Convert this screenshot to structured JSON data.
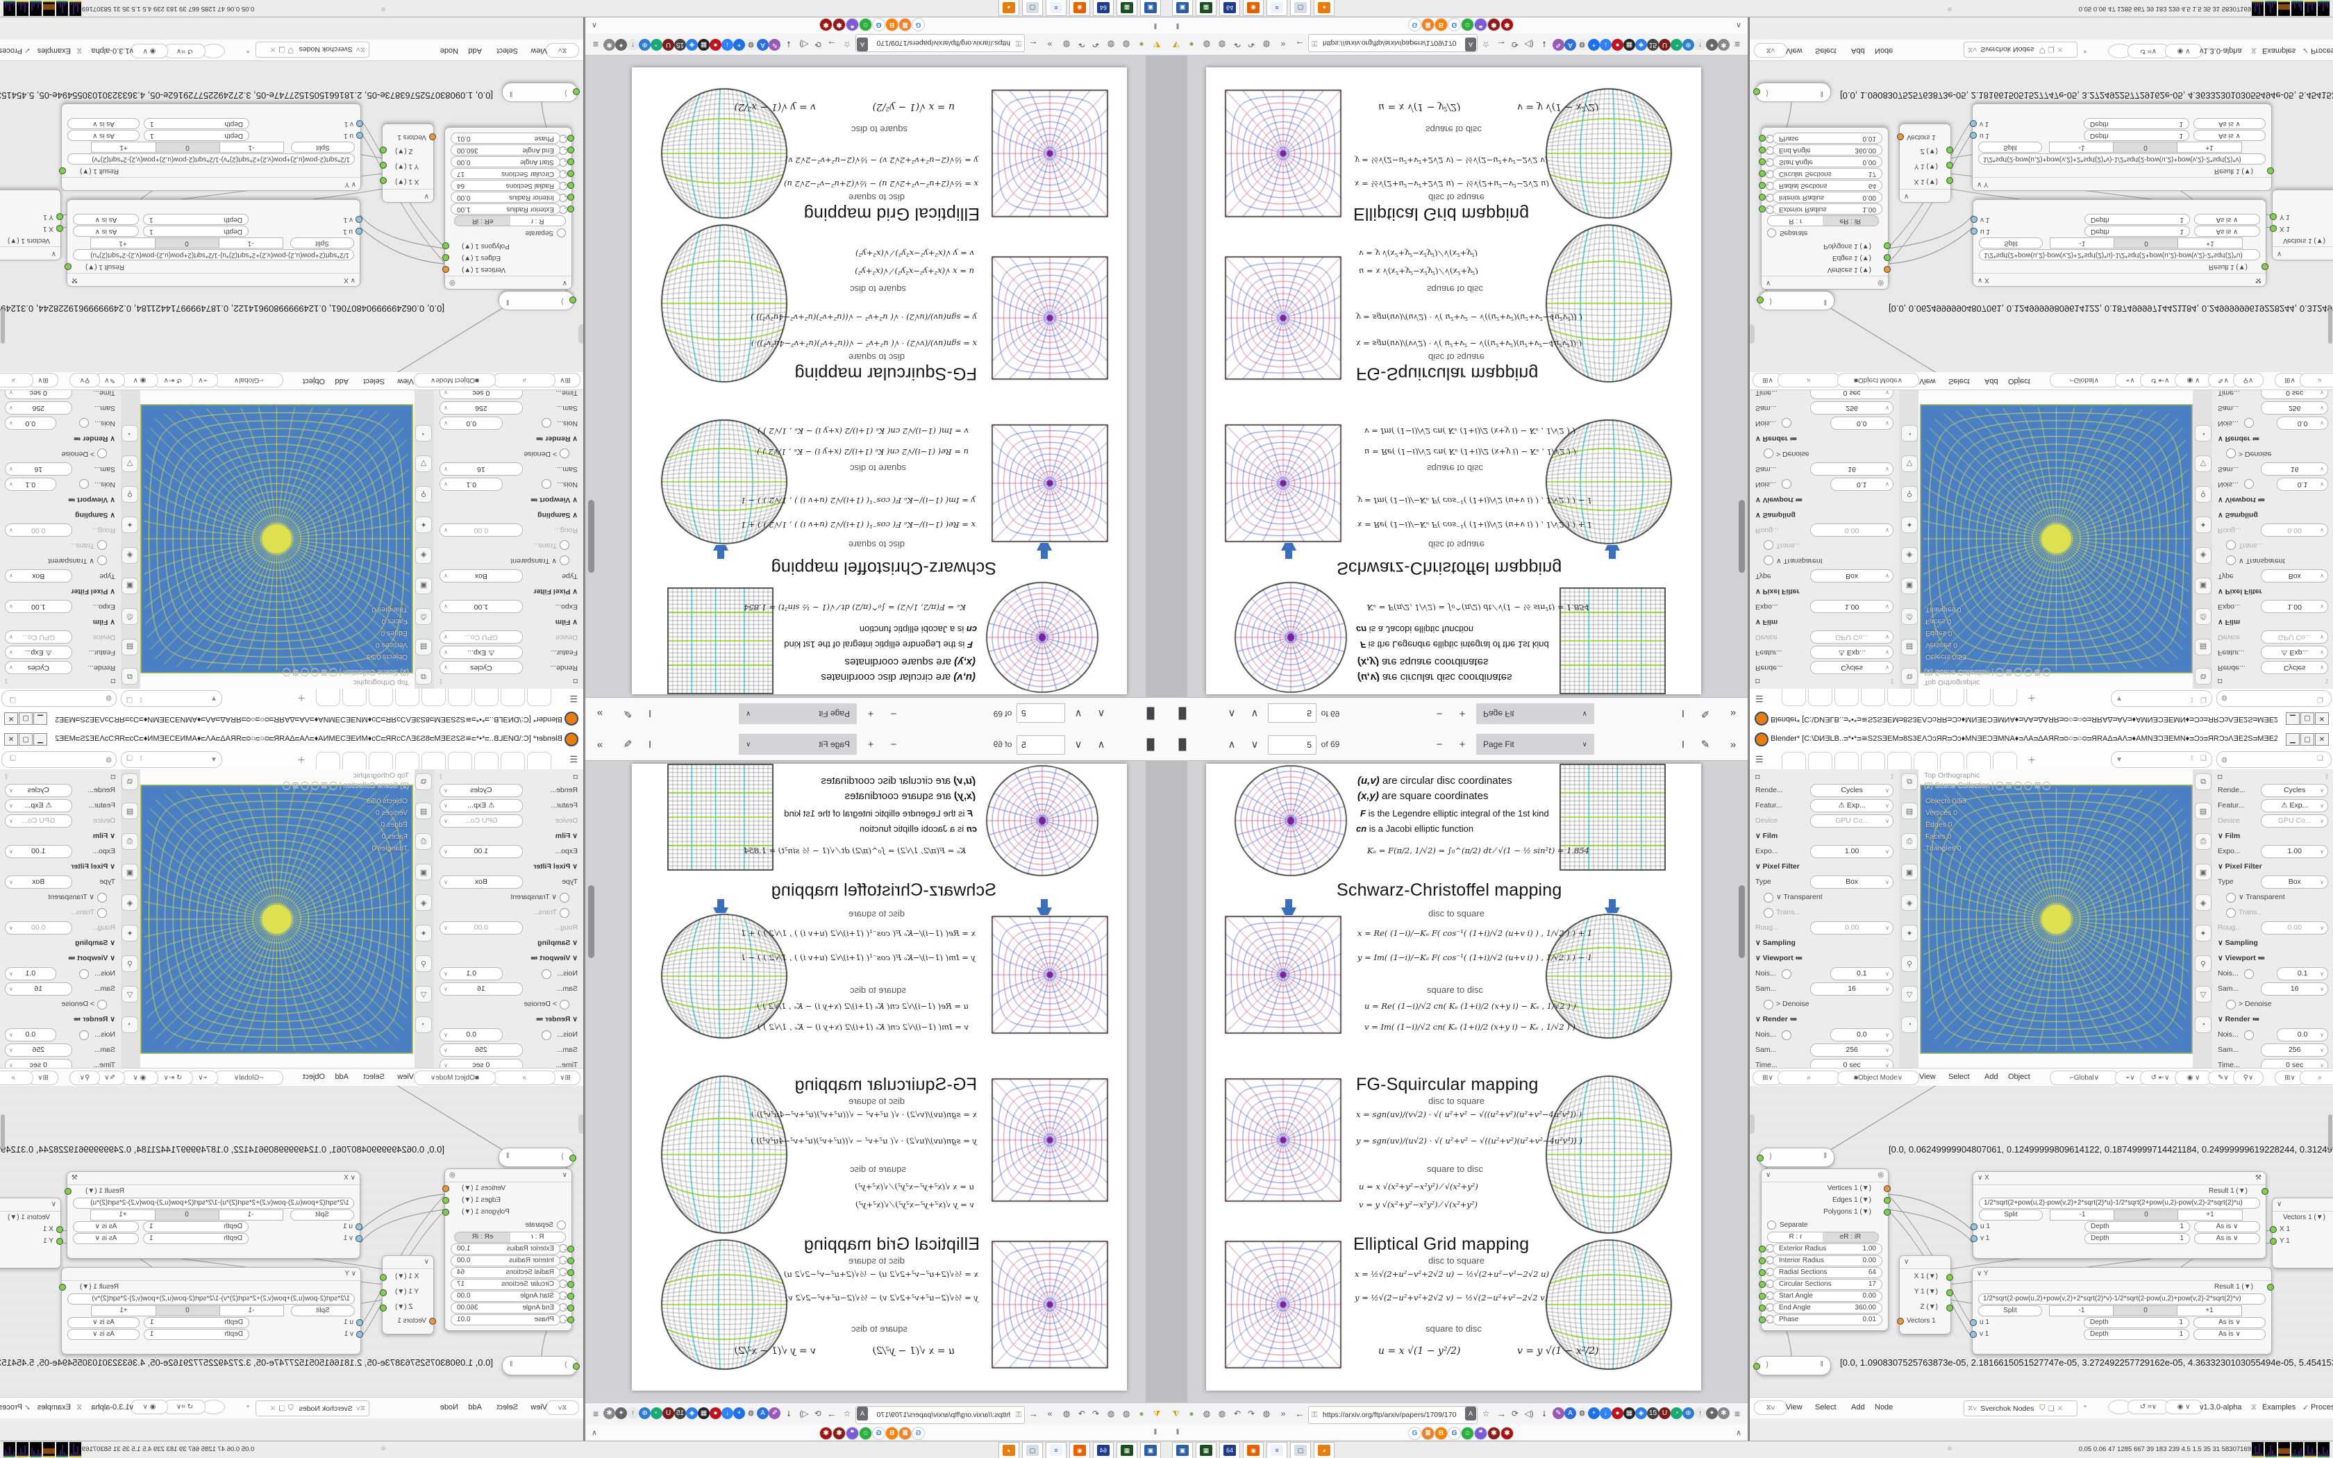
{
  "colors": {
    "viewport_bg": "#4a7fc4",
    "viewport_line": "#dde14f",
    "arrow_blue": "#3a6fc0",
    "fig_blue": "#4343cc",
    "fig_red": "#cc4474",
    "fig_purple": "#7a1fa0",
    "fig_cyan": "#2ab8c8",
    "fig_green": "#86c81e",
    "accent_green": "#7ed24a",
    "accent_orange": "#e8973a"
  },
  "pdf": {
    "toolbar": {
      "page_value": "5",
      "page_total_label": "of 69",
      "zoom_label": "Page Fit"
    },
    "url": "https://arxiv.org/ftp/arxiv/papers/1709/170",
    "page": {
      "intro": {
        "line_uv_bold": "(u,v)",
        "line_uv": " are circular disc coordinates",
        "line_xy_bold": "(x,y)",
        "line_xy": " are square coordinates",
        "line_F_bold": "F",
        "line_F": " is the Legendre elliptic integral of the 1st kind",
        "line_cn_bold": "cn",
        "line_cn": " is a Jacobi elliptic function",
        "ke_formula": "Kₑ = F(π/2, 1/√2) = ∫₀^(π/2) dt ⁄ √(1 − ½ sin²t)  ≈ 1.854"
      },
      "sections": [
        {
          "heading": "Schwarz-Christoffel mapping",
          "d2s": "disc to square",
          "s2d": "square to disc",
          "fx": "x = Re( (1−i)/−Kₑ F( cos⁻¹( (1+i)/√2 (u+v i) ) , 1/√2 ) ) + 1",
          "fy": "y = Im( (1−i)/−Kₑ F( cos⁻¹( (1+i)/√2 (u+v i) ) , 1/√2 ) ) − 1",
          "fu": "u = Re( (1−i)/√2 cn( Kₑ (1+i)/2 (x+y i) − Kₑ , 1/√2 ) )",
          "fv": "v = Im( (1−i)/√2 cn( Kₑ (1+i)/2 (x+y i) − Kₑ , 1/√2 ) )"
        },
        {
          "heading": "FG-Squircular mapping",
          "d2s": "disc to square",
          "s2d": "square to disc",
          "fx": "x = sgn(uv)/(v√2) · √( u²+v² − √((u²+v²)(u²+v²−4u²v²)) )",
          "fy": "y = sgn(uv)/(u√2) · √( u²+v² − √((u²+v²)(u²+v²−4u²v²)) )",
          "fu": "u = x √(x²+y²−x²y²) ⁄ √(x²+y²)",
          "fv": "v = y √(x²+y²−x²y²) ⁄ √(x²+y²)"
        },
        {
          "heading": "Elliptical Grid mapping",
          "d2s": "disc to square",
          "s2d": "square to disc",
          "fx": "x = ½√(2+u²−v²+2√2 u) − ½√(2+u²−v²−2√2 u)",
          "fy": "y = ½√(2−u²+v²+2√2 v) − ½√(2−u²+v²−2√2 v)",
          "fu": "u = x √(1 − y²/2)",
          "fv": "v = y √(1 − x²/2)"
        }
      ]
    },
    "bookmark_icons": [
      {
        "glyph": "G",
        "bg": "#ffffff",
        "fg": "#4285f4"
      },
      {
        "glyph": "≣",
        "bg": "#f48024",
        "fg": "#ffffff"
      },
      {
        "glyph": "B",
        "bg": "#ff8000",
        "fg": "#ffffff"
      },
      {
        "glyph": "G",
        "bg": "#ffffff",
        "fg": "#1a73e8"
      },
      {
        "glyph": "☺",
        "bg": "#27ae3c",
        "fg": "#ffffff"
      },
      {
        "glyph": "❝",
        "bg": "#7b5bd6",
        "fg": "#ffffff"
      },
      {
        "glyph": "✱",
        "bg": "#8b1a1a",
        "fg": "#ffffff"
      },
      {
        "glyph": "✱",
        "bg": "#a11212",
        "fg": "#ffffff"
      }
    ],
    "ext_icons": [
      {
        "glyph": "✎",
        "bg": "#9b59b6"
      },
      {
        "glyph": "A",
        "bg": "#2a6fdb"
      },
      {
        "glyph": "◍",
        "bg": "#eeeeee",
        "fg": "#333333"
      },
      {
        "glyph": "+",
        "bg": "#1f6feb"
      },
      {
        "glyph": "↓",
        "bg": "#2f81f7"
      },
      {
        "glyph": "●",
        "bg": "#c0111f"
      },
      {
        "glyph": "▦",
        "bg": "#222222"
      },
      {
        "glyph": "◈",
        "bg": "#2b7de9"
      },
      {
        "glyph": "15",
        "bg": "#444444"
      },
      {
        "glyph": "U",
        "bg": "#7a1c1c"
      },
      {
        "glyph": "◔",
        "bg": "#19a974"
      },
      {
        "glyph": "⊕",
        "bg": "#2e7dd1"
      },
      {
        "glyph": "↑",
        "bg": "#e8e8e8",
        "fg": "#555555"
      },
      {
        "glyph": "✦",
        "bg": "#666666"
      },
      {
        "glyph": "✱",
        "bg": "#888888"
      }
    ]
  },
  "blender": {
    "title": "Blender* [C:\\DИƎLB..ᴝ*•*ᴝ≅S2SƎEMᴝ8S3EΛƆᴐЯRᴝƆᴐ♦MNƎEƆƎMNA♦ᴝΛAᴝΔAЯRᴝᴑ○ᴝ○ᴑᴝЯRAΔᴝAΛᴝ♦AMNƎƆƎEMN♦ᴝƆᴐᴝЯRƆᴐΛƎE2SᴝMƎE2S≅ᴝ*•*ᴝ...",
    "workspace_tab_count": 9,
    "overlay": {
      "line1": "Top Orthographic",
      "line2": "(2) Scene Collection | ◯ ⊞ ◯ ◯ ⊞ ◯",
      "stats": [
        "Objects  0/53",
        "Vertices  0",
        "Edges  0",
        "Faces  0",
        "Triangles  0"
      ]
    },
    "props_rows": [
      {
        "t": "sel",
        "label": "Rende...",
        "value": "Cycles"
      },
      {
        "t": "sel",
        "label": "Featur...",
        "value": "⚠ Exp..."
      },
      {
        "t": "sel",
        "label": "Device",
        "value": "GPU Co...",
        "dim": true
      },
      {
        "t": "head",
        "label": "∨ Film"
      },
      {
        "t": "sel",
        "label": "Expo...",
        "value": "1.00"
      },
      {
        "t": "head",
        "label": "∨ Pixel Filter"
      },
      {
        "t": "sel",
        "label": "Type",
        "value": "Box"
      },
      {
        "t": "chk",
        "label": "Transparent",
        "pre": "∨"
      },
      {
        "t": "chk",
        "label": "Trans...",
        "dim": true
      },
      {
        "t": "sel",
        "label": "Roug...",
        "value": "0.00",
        "dim": true
      },
      {
        "t": "head",
        "label": "∨ Sampling"
      },
      {
        "t": "head",
        "label": "∨ Viewport  ≔"
      },
      {
        "t": "chkf",
        "label": "Nois...",
        "value": "0.1"
      },
      {
        "t": "sel",
        "label": "Sam...",
        "value": "16"
      },
      {
        "t": "chk",
        "label": "Denoise",
        "pre": ">"
      },
      {
        "t": "head",
        "label": "∨ Render  ≔"
      },
      {
        "t": "chkf",
        "label": "Nois...",
        "value": "0.0"
      },
      {
        "t": "sel",
        "label": "Sam...",
        "value": "256"
      },
      {
        "t": "sel",
        "label": "Time...",
        "value": "0 sec"
      }
    ],
    "prop_tab_icons": [
      "▤",
      "⎙",
      "▣",
      "◈",
      "✦",
      "⚲",
      "▽",
      "◔"
    ],
    "obj_header": {
      "mode": "Object Mode",
      "menus": [
        "View",
        "Select",
        "Add",
        "Object"
      ],
      "orient": "Global"
    },
    "nodes": {
      "torus": {
        "outputs": [
          "Vertices 1",
          "Edges 1",
          "Polygons 1"
        ],
        "separate": "Separate",
        "toggle_a": "R : r",
        "toggle_b": "eR : iR",
        "params": [
          [
            "Exterior Radius",
            "1.00"
          ],
          [
            "Interior Radius",
            "0.00"
          ],
          [
            "Radial Sections",
            "64"
          ],
          [
            "Circular Sections",
            "17"
          ],
          [
            "Start Angle",
            "0.00"
          ],
          [
            "End Angle",
            "360.00"
          ],
          [
            "Phase",
            "0.01"
          ]
        ]
      },
      "formula_x": {
        "title": "X",
        "result": "Result 1",
        "formula": "1/2*sqrt(2+pow(u,2)-pow(v,2)+2*sqrt(2)*u)-1/2*sqrt(2+pow(u,2)-pow(v,2)-2*sqrt(2)*u)",
        "split": "Split",
        "wrap": [
          "-1",
          "0",
          "+1"
        ],
        "rows": [
          [
            "u 1",
            "Depth",
            "1",
            "As is"
          ],
          [
            "v 1",
            "Depth",
            "1",
            "As is"
          ]
        ]
      },
      "formula_y": {
        "title": "Y",
        "result": "Result 1",
        "formula": "1/2*sqrt(2-pow(u,2)+pow(v,2)+2*sqrt(2)*v)-1/2*sqrt(2-pow(u,2)+pow(v,2)-2*sqrt(2)*v)",
        "split": "Split",
        "wrap": [
          "-1",
          "0",
          "+1"
        ],
        "rows": [
          [
            "u 1",
            "Depth",
            "1",
            "As is"
          ],
          [
            "v 1",
            "Depth",
            "1",
            "As is"
          ]
        ]
      },
      "vector_in": {
        "rows": [
          "X 1",
          "Y 1",
          "Z"
        ],
        "output": "Vectors 1"
      },
      "vector_edge": {
        "input": "Vectors 1",
        "outs": [
          "X 1",
          "Y 1"
        ]
      },
      "array1": "[0.0, 0.06249999904807061, 0.12499999809614122, 0.18749999714421184, 0.24999999619228244, 0.31249999524035305, 0.374",
      "array2": "[0.0, 1.0908307525763873e-05, 2.1816615051527747e-05, 3.272492257729162e-05, 4.3633230103055494e-05, 5.4541537628819366e-05, 6.54498"
    },
    "sv_header": {
      "menus": [
        "View",
        "Select",
        "Add",
        "Node"
      ],
      "tree_name": "Sverchok Nodes",
      "version": "v1.3.0-alpha",
      "examples": "Examples",
      "processing": "Processing",
      "check": "✓"
    }
  },
  "taskbar": {
    "apps": [
      {
        "glyph": "▣",
        "bg": "#2b5fa3"
      },
      {
        "glyph": "▦",
        "bg": "#1d4d22"
      },
      {
        "glyph": "64",
        "bg": "#1e3a8a"
      },
      {
        "glyph": "◉",
        "bg": "#e66000"
      },
      {
        "glyph": "≡",
        "bg": "#eef2ff",
        "fg": "#446"
      },
      {
        "glyph": "▢",
        "bg": "#d8dce8",
        "fg": "#345"
      },
      {
        "glyph": "◕",
        "bg": "#e87d0d"
      }
    ],
    "monitor_text": "0.05 0.06  47  1285 667  39  183  239  4.5  1.5  35  31  58307169",
    "monitor_box_count": 6
  }
}
